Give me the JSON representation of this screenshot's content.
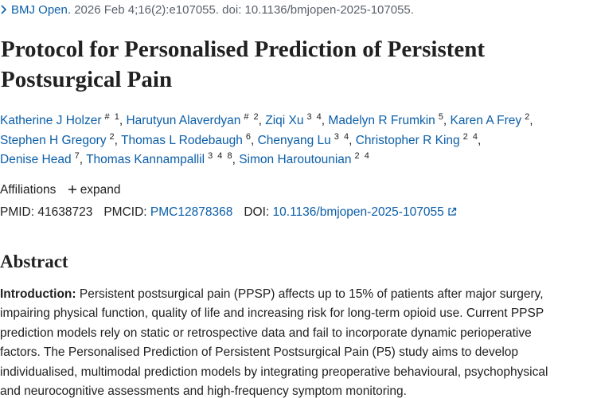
{
  "citation": {
    "journal": "BMJ Open.",
    "details": "2026 Feb 4;16(2):e107055. doi: 10.1136/bmjopen-2025-107055."
  },
  "title": [
    "Protocol for Personalised Prediction of Persistent",
    "Postsurgical Pain"
  ],
  "authors": {
    "separator": ",",
    "lines": [
      [
        {
          "name": "Katherine J Holzer",
          "sup": "# 1"
        },
        {
          "name": "Harutyun Alaverdyan",
          "sup": "# 2"
        },
        {
          "name": "Ziqi Xu",
          "sup": "3 4"
        },
        {
          "name": "Madelyn R Frumkin",
          "sup": "5"
        },
        {
          "name": "Karen A Frey",
          "sup": "2"
        }
      ],
      [
        {
          "name": "Stephen H Gregory",
          "sup": "2"
        },
        {
          "name": "Thomas L Rodebaugh",
          "sup": "6"
        },
        {
          "name": "Chenyang Lu",
          "sup": "3 4"
        },
        {
          "name": "Christopher R King",
          "sup": "2 4"
        }
      ],
      [
        {
          "name": "Denise Head",
          "sup": "7"
        },
        {
          "name": "Thomas Kannampallil",
          "sup": "3 4 8"
        },
        {
          "name": "Simon Haroutounian",
          "sup": "2 4"
        }
      ]
    ]
  },
  "affiliations": {
    "label": "Affiliations",
    "toggle": "expand"
  },
  "ids": {
    "pmid_label": "PMID:",
    "pmid": "41638723",
    "pmcid_label": "PMCID:",
    "pmcid": "PMC12878368",
    "doi_label": "DOI:",
    "doi": "10.1136/bmjopen-2025-107055"
  },
  "abstract": {
    "heading": "Abstract",
    "label": "Introduction:",
    "lines": [
      "Persistent postsurgical pain (PPSP) affects up to 15% of patients after major surgery,",
      "impairing physical function, quality of life and increasing risk for long-term opioid use. Current PPSP",
      "prediction models rely on static or retrospective data and fail to incorporate dynamic perioperative",
      "factors. The Personalised Prediction of Persistent Postsurgical Pain (P5) study aims to develop",
      "individualised, multimodal prediction models by integrating preoperative behavioural, psychophysical",
      "and neurocognitive assessments and high-frequency symptom monitoring."
    ]
  }
}
